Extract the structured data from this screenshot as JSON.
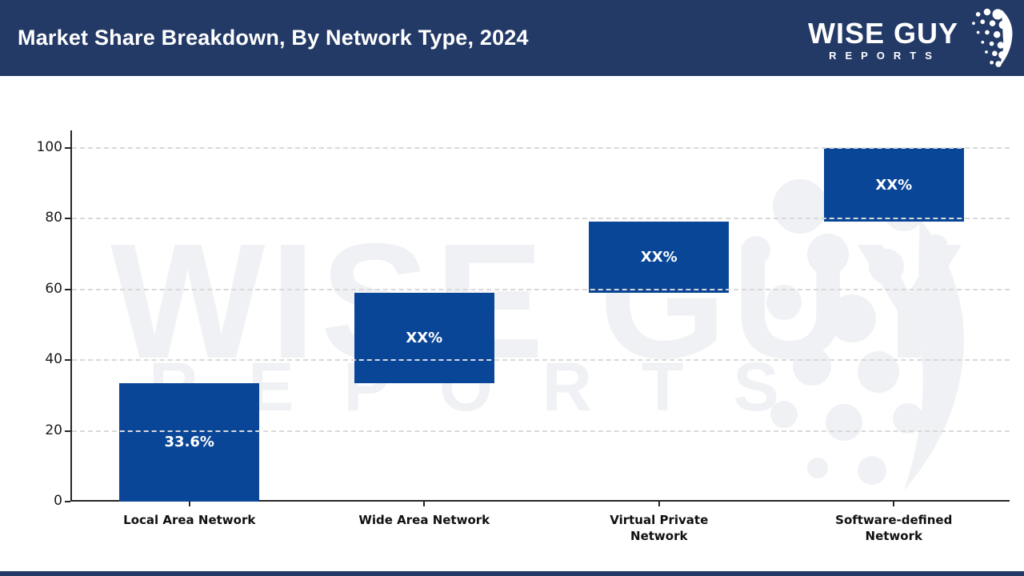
{
  "header": {
    "title": "Market Share Breakdown, By Network Type, 2024",
    "background": "#233a66",
    "logo": {
      "wordmark": "WISE GUY",
      "sub": "REPORTS"
    }
  },
  "watermark": {
    "wordmark": "WISE GUY",
    "sub": "REPORTS"
  },
  "footer": {
    "color": "#233a66"
  },
  "chart_data": {
    "type": "bar",
    "variant": "waterfall",
    "title": "Market Share Breakdown, By Network Type, 2024",
    "categories": [
      "Local Area Network",
      "Wide Area Network",
      "Virtual Private Network",
      "Software-defined Network"
    ],
    "category_lines": [
      [
        "Local Area Network"
      ],
      [
        "Wide Area Network"
      ],
      [
        "Virtual Private",
        "Network"
      ],
      [
        "Software-defined",
        "Network"
      ]
    ],
    "segments": [
      {
        "category": "Local Area Network",
        "start": 0,
        "end": 33.6,
        "label": "33.6%"
      },
      {
        "category": "Wide Area Network",
        "start": 33.6,
        "end": 59.1,
        "label": "XX%"
      },
      {
        "category": "Virtual Private Network",
        "start": 59.1,
        "end": 79.1,
        "label": "XX%"
      },
      {
        "category": "Software-defined Network",
        "start": 79.1,
        "end": 100,
        "label": "XX%"
      }
    ],
    "yticks": [
      0,
      20,
      40,
      60,
      80,
      100
    ],
    "ylim": [
      0,
      105
    ],
    "xlabel": "",
    "ylabel": "",
    "bar_color": "#0a4697",
    "bar_label_color": "#ffffff",
    "grid": {
      "axis": "y",
      "style": "dashed",
      "color": "#d9d9d9"
    },
    "legend": "none"
  }
}
